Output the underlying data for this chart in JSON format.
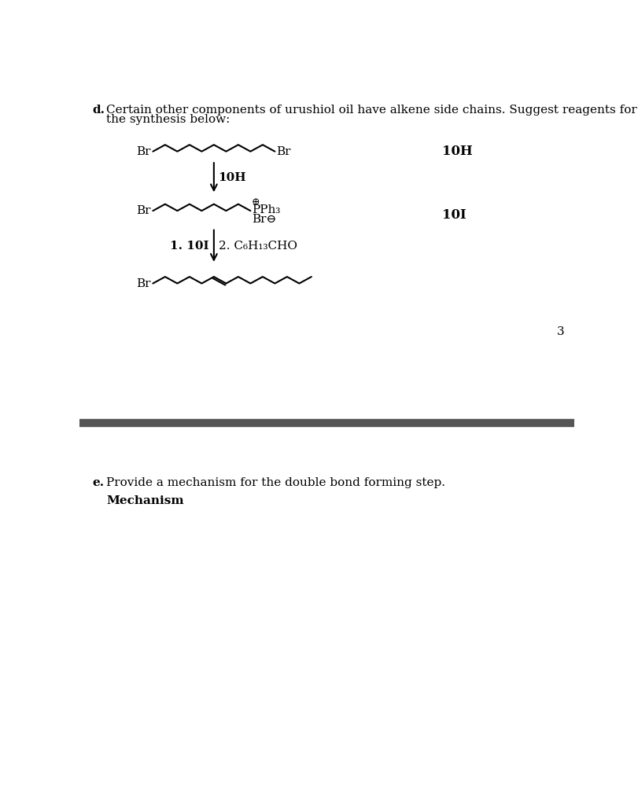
{
  "bg_color": "#ffffff",
  "divider_color": "#555555",
  "title_d": "d.",
  "title_text": "Certain other components of urushiol oil have alkene side chains. Suggest reagents for",
  "title_text2": "the synthesis below:",
  "right_label_10H": "10H",
  "right_label_10I": "10I",
  "arrow1_label": "10H",
  "arrow2_label1": "1. 10I",
  "arrow2_label2": "2. C₆H₁₃CHO",
  "pph3_plus": "⊕",
  "pph3_text": "PPh₃",
  "br_neg": "Br⊖",
  "section_e_label": "e.",
  "section_e_text": "Provide a mechanism for the double bond forming step.",
  "section_mech_label": "Mechanism",
  "page_number": "3",
  "font_family": "DejaVu Serif",
  "fontsize_main": 11,
  "fontsize_bold": 12
}
